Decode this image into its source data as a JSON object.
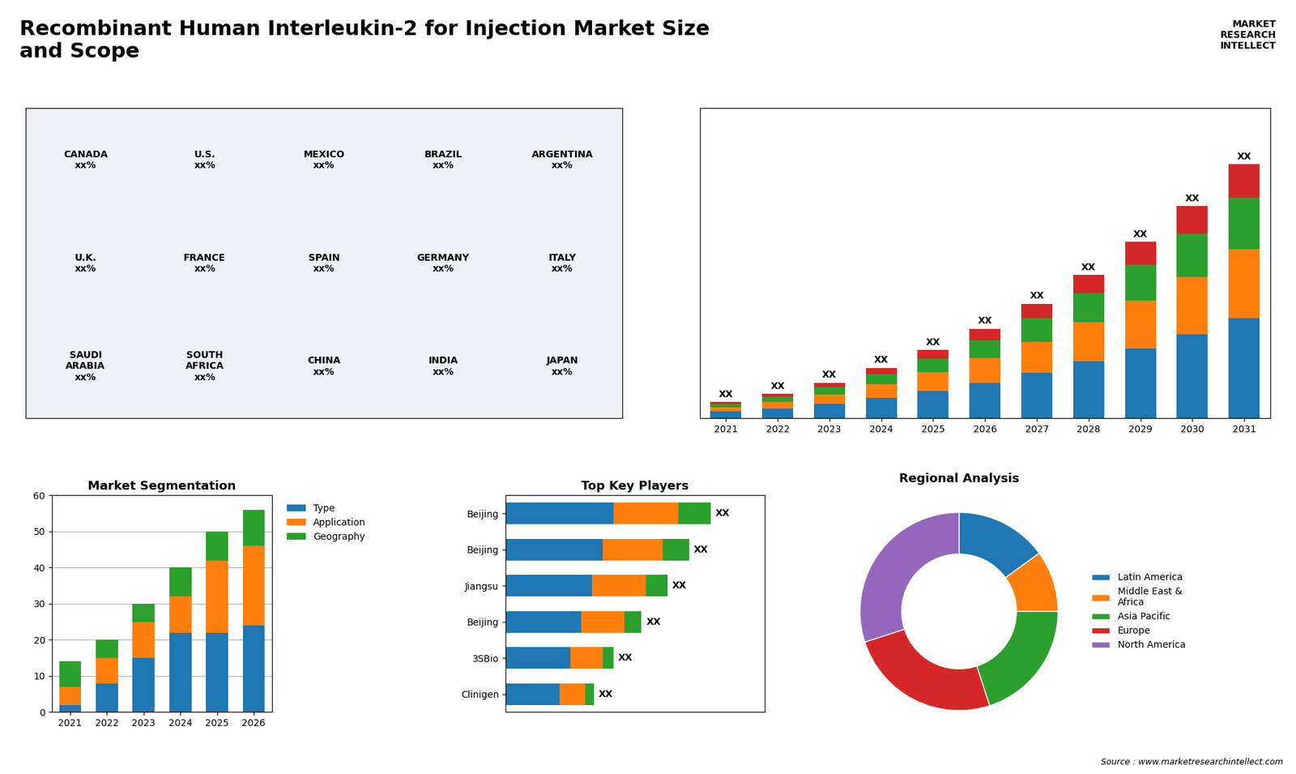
{
  "title": "Recombinant Human Interleukin-2 for Injection Market Size\nand Scope",
  "annotations": [
    "MARKET\nRESEARCH\nINTELLECT",
    "Source : www.marketresearchintellect.com"
  ],
  "chart_data": [
    {
      "type": "map",
      "annotations": [
        "CANADA\nxx%",
        "U.S.\nxx%",
        "MEXICO\nxx%",
        "BRAZIL\nxx%",
        "ARGENTINA\nxx%",
        "U.K.\nxx%",
        "FRANCE\nxx%",
        "SPAIN\nxx%",
        "GERMANY\nxx%",
        "ITALY\nxx%",
        "SAUDI\nARABIA\nxx%",
        "SOUTH\nAFRICA\nxx%",
        "CHINA\nxx%",
        "INDIA\nxx%",
        "JAPAN\nxx%"
      ]
    },
    {
      "type": "bar",
      "stacked": true,
      "tick_labels": "x",
      "categories": [
        "2021",
        "2022",
        "2023",
        "2024",
        "2025",
        "2026",
        "2027",
        "2028",
        "2029",
        "2030",
        "2031"
      ],
      "series": [
        {
          "values": [
            1.0,
            1.5,
            2.2,
            3.1,
            4.2,
            5.5,
            7.0,
            8.8,
            10.8,
            13.0,
            15.5
          ]
        },
        {
          "values": [
            0.7,
            1.0,
            1.5,
            2.1,
            2.9,
            3.8,
            4.9,
            6.1,
            7.5,
            9.0,
            10.8
          ]
        },
        {
          "values": [
            0.5,
            0.8,
            1.1,
            1.6,
            2.1,
            2.8,
            3.6,
            4.5,
            5.5,
            6.7,
            8.0
          ]
        },
        {
          "values": [
            0.3,
            0.5,
            0.7,
            1.0,
            1.4,
            1.8,
            2.3,
            2.9,
            3.6,
            4.3,
            5.2
          ]
        }
      ],
      "annotations": [
        "XX",
        "XX",
        "XX",
        "XX",
        "XX",
        "XX",
        "XX",
        "XX",
        "XX",
        "XX",
        "XX"
      ],
      "ylim": [
        0,
        48.19
      ]
    },
    {
      "type": "bar",
      "stacked": true,
      "title": "Market Segmentation",
      "categories": [
        "2021",
        "2022",
        "2023",
        "2024",
        "2025",
        "2026"
      ],
      "series": [
        {
          "name": "Type",
          "values": [
            2,
            8,
            15,
            22,
            22,
            24
          ]
        },
        {
          "name": "Application",
          "values": [
            5,
            7,
            10,
            10,
            20,
            22
          ]
        },
        {
          "name": "Geography",
          "values": [
            7,
            5,
            5,
            8,
            8,
            10
          ]
        }
      ],
      "ylim": [
        0,
        60
      ],
      "yticks": [
        0,
        10,
        20,
        30,
        40,
        50,
        60
      ],
      "grid": true,
      "legend": "upper left"
    },
    {
      "type": "bar",
      "stacked": true,
      "orientation": "horizontal",
      "title": "Top Key Players",
      "tick_labels": "y",
      "categories": [
        "Beijing",
        "Beijing",
        "Jiangsu",
        "Beijing",
        "3SBio",
        "Clinigen"
      ],
      "series": [
        {
          "values": [
            5.0,
            4.5,
            4.0,
            3.5,
            3.0,
            2.5
          ]
        },
        {
          "values": [
            3.0,
            2.8,
            2.5,
            2.0,
            1.5,
            1.2
          ]
        },
        {
          "values": [
            1.5,
            1.2,
            1.0,
            0.8,
            0.5,
            0.4
          ]
        }
      ],
      "annotations": [
        "XX",
        "XX",
        "XX",
        "XX",
        "XX",
        "XX"
      ],
      "xlim": [
        0,
        12
      ]
    },
    {
      "type": "donut",
      "title": "Regional Analysis",
      "categories": [
        "Latin America",
        "Middle East &\nAfrica",
        "Asia Pacific",
        "Europe",
        "North America"
      ],
      "values": [
        15,
        10,
        20,
        25,
        30
      ],
      "legend": "center left"
    }
  ]
}
